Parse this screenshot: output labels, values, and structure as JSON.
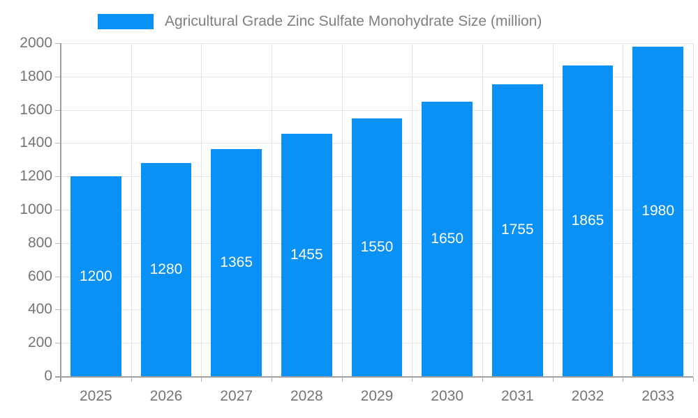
{
  "chart_data": {
    "type": "bar",
    "title": "Agricultural Grade Zinc Sulfate Monohydrate Size (million)",
    "categories": [
      "2025",
      "2026",
      "2027",
      "2028",
      "2029",
      "2030",
      "2031",
      "2032",
      "2033"
    ],
    "values": [
      1200,
      1280,
      1365,
      1455,
      1550,
      1650,
      1755,
      1865,
      1980
    ],
    "xlabel": "",
    "ylabel": "",
    "ylim": [
      0,
      2000
    ],
    "ytick_step": 200,
    "grid": "on",
    "legend_position": "top",
    "value_labels": "inside-center",
    "colors": {
      "bar": "#0991f5",
      "grid": "#e3e3e3",
      "axis": "#9e9e9e",
      "tick": "#b3b3b3",
      "tick_text": "#757575",
      "title_text": "#808080",
      "value_text": "#ffffff"
    }
  }
}
